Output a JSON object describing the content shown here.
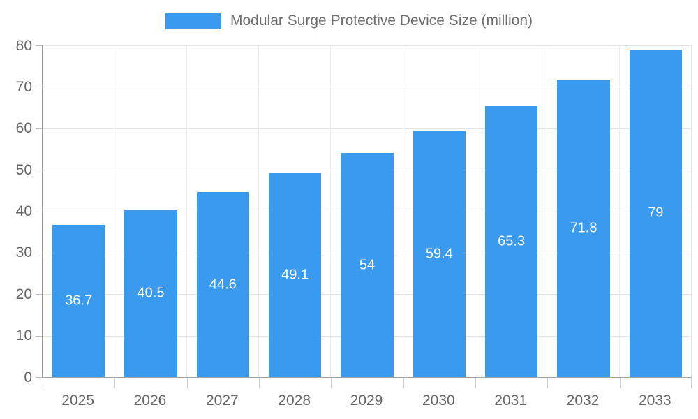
{
  "legend": {
    "label": "Modular Surge Protective Device Size (million)"
  },
  "chart_data": {
    "type": "bar",
    "title": "Modular Surge Protective Device Size (million)",
    "categories": [
      "2025",
      "2026",
      "2027",
      "2028",
      "2029",
      "2030",
      "2031",
      "2032",
      "2033"
    ],
    "values": [
      36.7,
      40.5,
      44.6,
      49.1,
      54,
      59.4,
      65.3,
      71.8,
      79
    ],
    "xlabel": "",
    "ylabel": "",
    "ylim": [
      0,
      80
    ],
    "ytick_step": 10,
    "ytick_labels": [
      "0",
      "10",
      "20",
      "30",
      "40",
      "50",
      "60",
      "70",
      "80"
    ],
    "grid": true,
    "legend_position": "top-center",
    "value_labels_shown": true,
    "value_label_position": "center-of-bar"
  },
  "colors": {
    "bar": "#3A9AED",
    "value_label": "#ffffff",
    "axis_label": "#666666",
    "legend_text": "#6e6e6e",
    "gridline": "#e4e4e4",
    "axis_line": "#999999",
    "tick": "#cfcfcf",
    "background": "#ffffff"
  }
}
